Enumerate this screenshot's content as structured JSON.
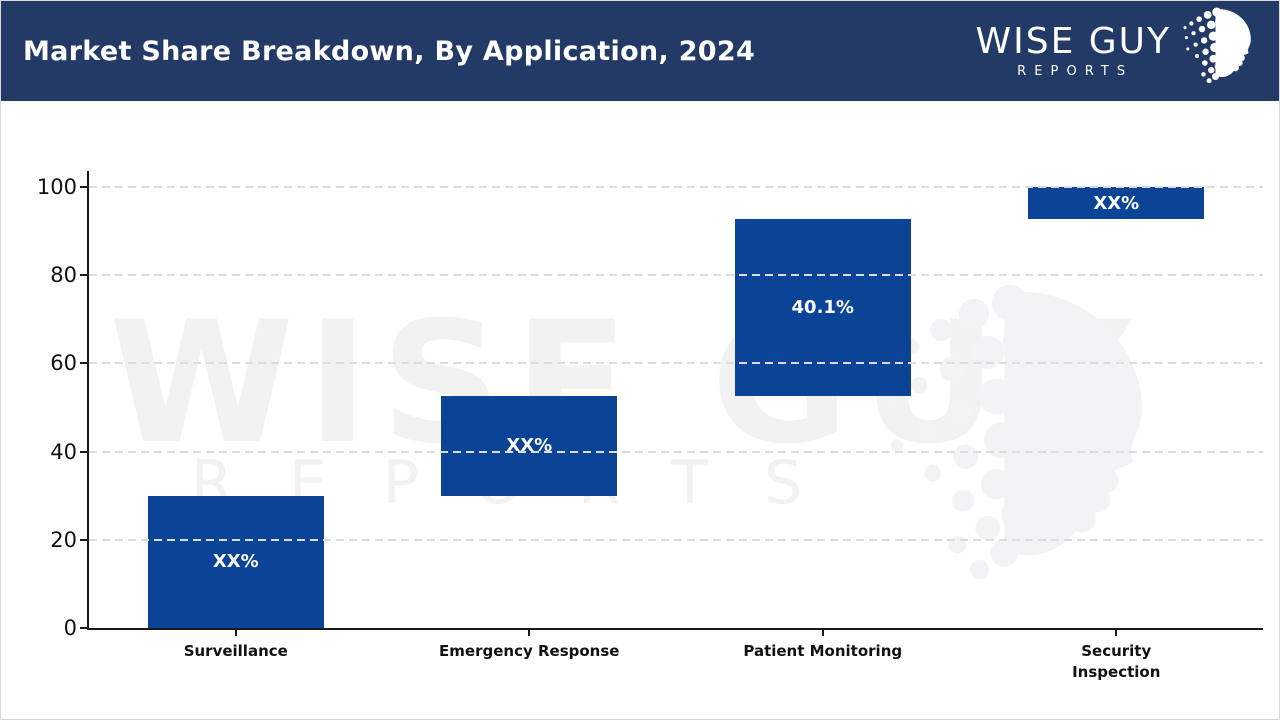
{
  "header": {
    "title": "Market Share Breakdown, By Application, 2024",
    "brand": {
      "wordmark": "WISE GUY",
      "subline": "REPORTS"
    }
  },
  "watermark": {
    "wordmark": "WISE GUY",
    "subline": "REPORTS"
  },
  "chart_data": {
    "type": "bar",
    "subtype": "floating-waterfall",
    "title": "Market Share Breakdown, By Application, 2024",
    "categories": [
      "Surveillance",
      "Emergency Response",
      "Patient Monitoring",
      "Security\nInspection"
    ],
    "segments": [
      {
        "category": "Surveillance",
        "start": 0,
        "end": 30,
        "value": 30,
        "value_label": "XX%"
      },
      {
        "category": "Emergency Response",
        "start": 30,
        "end": 52.6,
        "value": 22.6,
        "value_label": "XX%"
      },
      {
        "category": "Patient Monitoring",
        "start": 52.6,
        "end": 92.7,
        "value": 40.1,
        "value_label": "40.1%"
      },
      {
        "category": "Security Inspection",
        "start": 92.7,
        "end": 100,
        "value": 7.3,
        "value_label": "XX%"
      }
    ],
    "yticks": [
      0,
      20,
      40,
      60,
      80,
      100
    ],
    "ylim": [
      0,
      104
    ],
    "xlabel": "",
    "ylabel": "",
    "grid": {
      "horizontal": true,
      "style": "dashed",
      "drawn_above_bars": true
    },
    "legend": "none",
    "colors": {
      "bar": "#0b4397",
      "bar_label": "#ffffff",
      "axis": "#1a1a1a",
      "tick_label": "#111111",
      "gridline": "#dcdcdc",
      "header_bg": "#233a66",
      "watermark": "#f2f2f2"
    }
  }
}
